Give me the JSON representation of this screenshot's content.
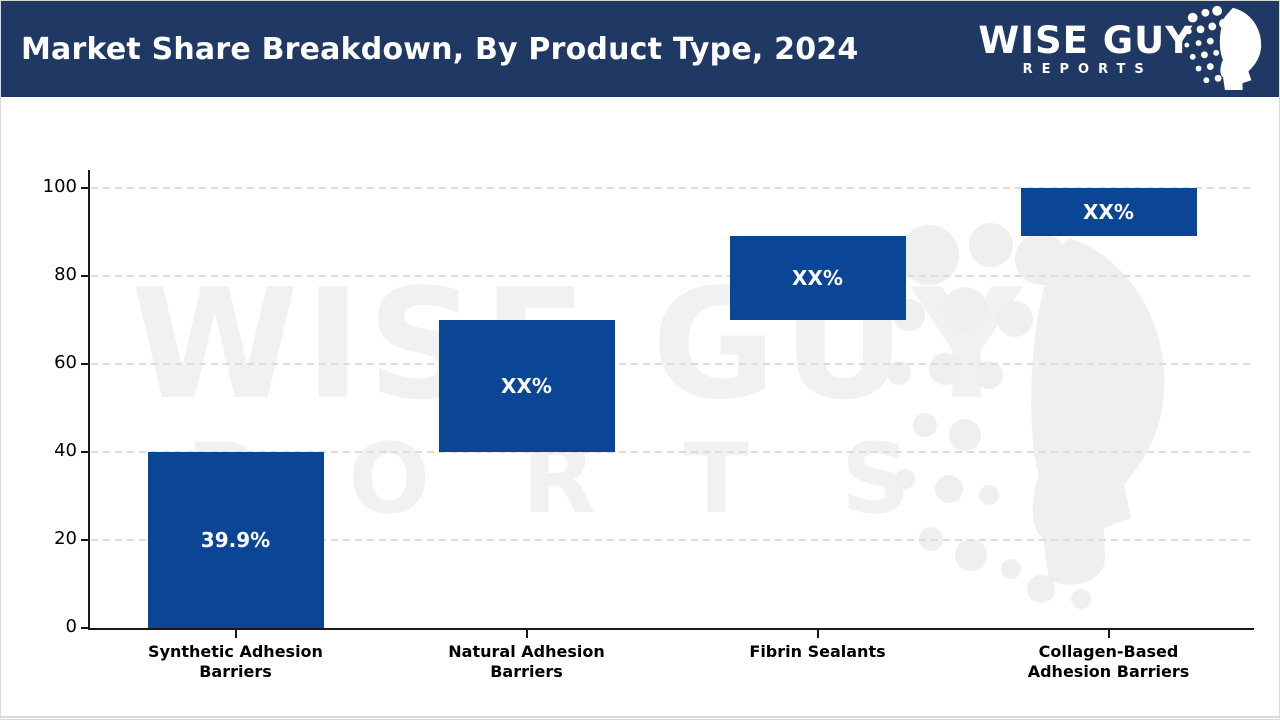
{
  "header": {
    "title": "Market Share Breakdown, By Product Type, 2024",
    "bg_color": "#1f3864",
    "logo": {
      "line1": "WISE GUY",
      "line2": "REPORTS"
    }
  },
  "watermark": {
    "line1": "WISE GUY",
    "line2": "PORTS"
  },
  "chart_data": {
    "type": "bar",
    "subtype": "floating-segment-waterfall",
    "title": "Market Share Breakdown, By Product Type, 2024",
    "xlabel": "",
    "ylabel": "",
    "categories": [
      "Synthetic Adhesion Barriers",
      "Natural Adhesion Barriers",
      "Fibrin Sealants",
      "Collagen-Based Adhesion Barriers"
    ],
    "bars": [
      {
        "category": "Synthetic Adhesion Barriers",
        "category_lines": "Synthetic Adhesion\nBarriers",
        "start": 0,
        "end": 39.9,
        "value": 39.9,
        "label": "39.9%"
      },
      {
        "category": "Natural Adhesion Barriers",
        "category_lines": "Natural Adhesion\nBarriers",
        "start": 39.9,
        "end": 69.9,
        "value": 30.0,
        "label": "XX%"
      },
      {
        "category": "Fibrin Sealants",
        "category_lines": "Fibrin Sealants",
        "start": 69.9,
        "end": 89.1,
        "value": 19.2,
        "label": "XX%"
      },
      {
        "category": "Collagen-Based Adhesion Barriers",
        "category_lines": "Collagen-Based\nAdhesion Barriers",
        "start": 89.1,
        "end": 100,
        "value": 10.9,
        "label": "XX%"
      }
    ],
    "y_ticks": [
      0,
      20,
      40,
      60,
      80,
      100
    ],
    "ylim": [
      0,
      104
    ],
    "grid": "dashed-horizontal",
    "legend": "none",
    "bar_color": "#0b4596",
    "bar_label_color": "#ffffff",
    "grid_color": "#dcdcdc",
    "axis_color": "#1a1a1a"
  }
}
